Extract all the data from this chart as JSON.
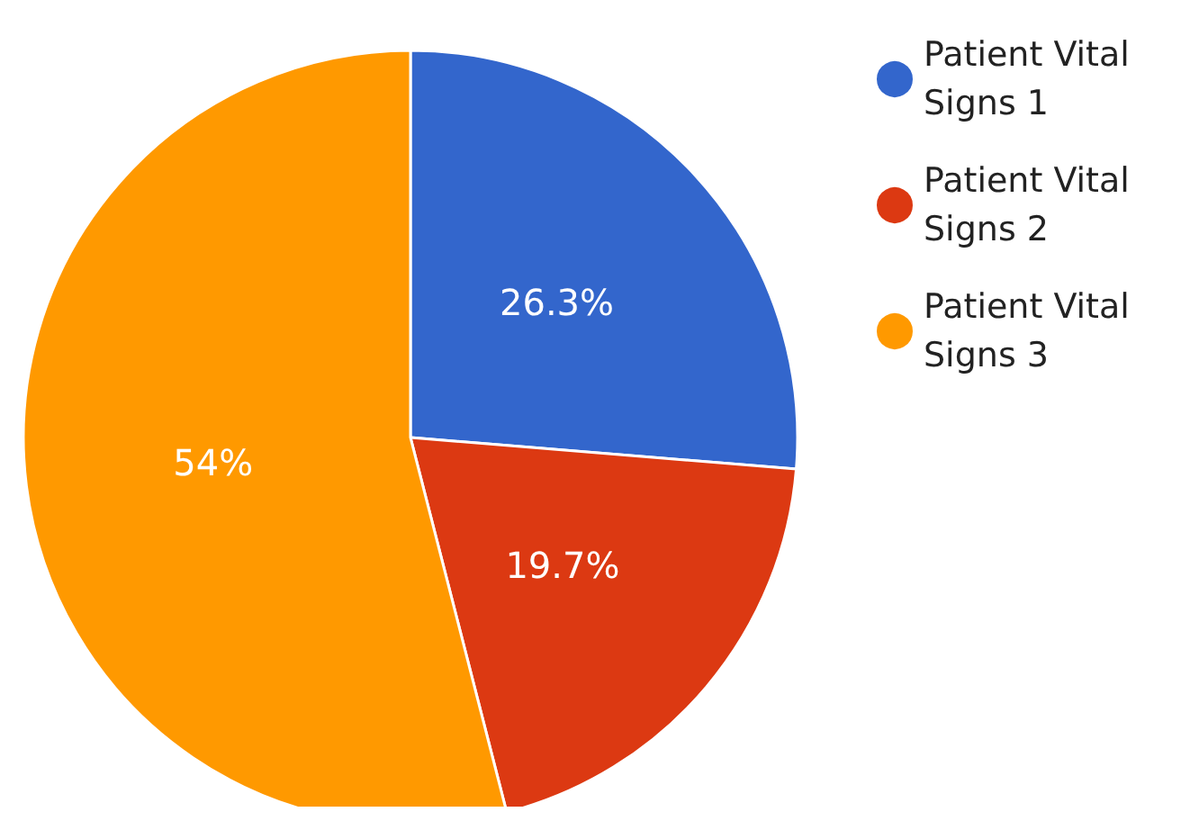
{
  "chart_data": {
    "type": "pie",
    "categories": [
      "Patient Vital Signs 1",
      "Patient Vital Signs 2",
      "Patient Vital Signs 3"
    ],
    "values": [
      26.3,
      19.7,
      54
    ],
    "colors": [
      "#3366cc",
      "#dc3912",
      "#ff9900"
    ],
    "value_labels": [
      "26.3%",
      "19.7%",
      "54%"
    ],
    "legend": "top right"
  }
}
